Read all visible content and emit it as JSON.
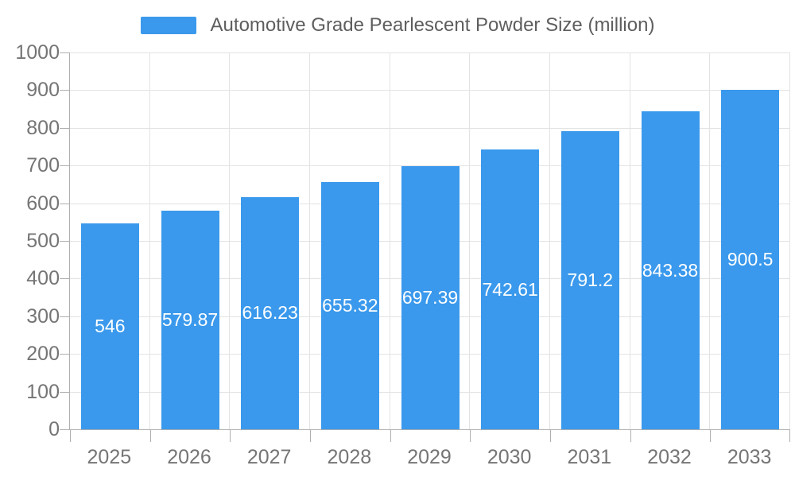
{
  "chart_data": {
    "type": "bar",
    "title": "Automotive Grade Pearlescent Powder Size (million)",
    "legend": {
      "label": "Automotive Grade Pearlescent Powder Size (million)",
      "position": "top-center"
    },
    "categories": [
      "2025",
      "2026",
      "2027",
      "2028",
      "2029",
      "2030",
      "2031",
      "2032",
      "2033"
    ],
    "values": [
      546,
      579.87,
      616.23,
      655.32,
      697.39,
      742.61,
      791.2,
      843.38,
      900.5
    ],
    "data_labels": [
      "546",
      "579.87",
      "616.23",
      "655.32",
      "697.39",
      "742.61",
      "791.2",
      "843.38",
      "900.5"
    ],
    "xlabel": "",
    "ylabel": "",
    "ylim": [
      0,
      1000
    ],
    "ytick_interval": 100,
    "grid": true,
    "colors": {
      "bar": "#3A99EC",
      "data_label": "#FFFFFF",
      "axis_line": "#AFAFAF",
      "grid_line": "#E3E3E3",
      "axis_text": "#757575",
      "legend_text": "#5E5E5E"
    }
  }
}
